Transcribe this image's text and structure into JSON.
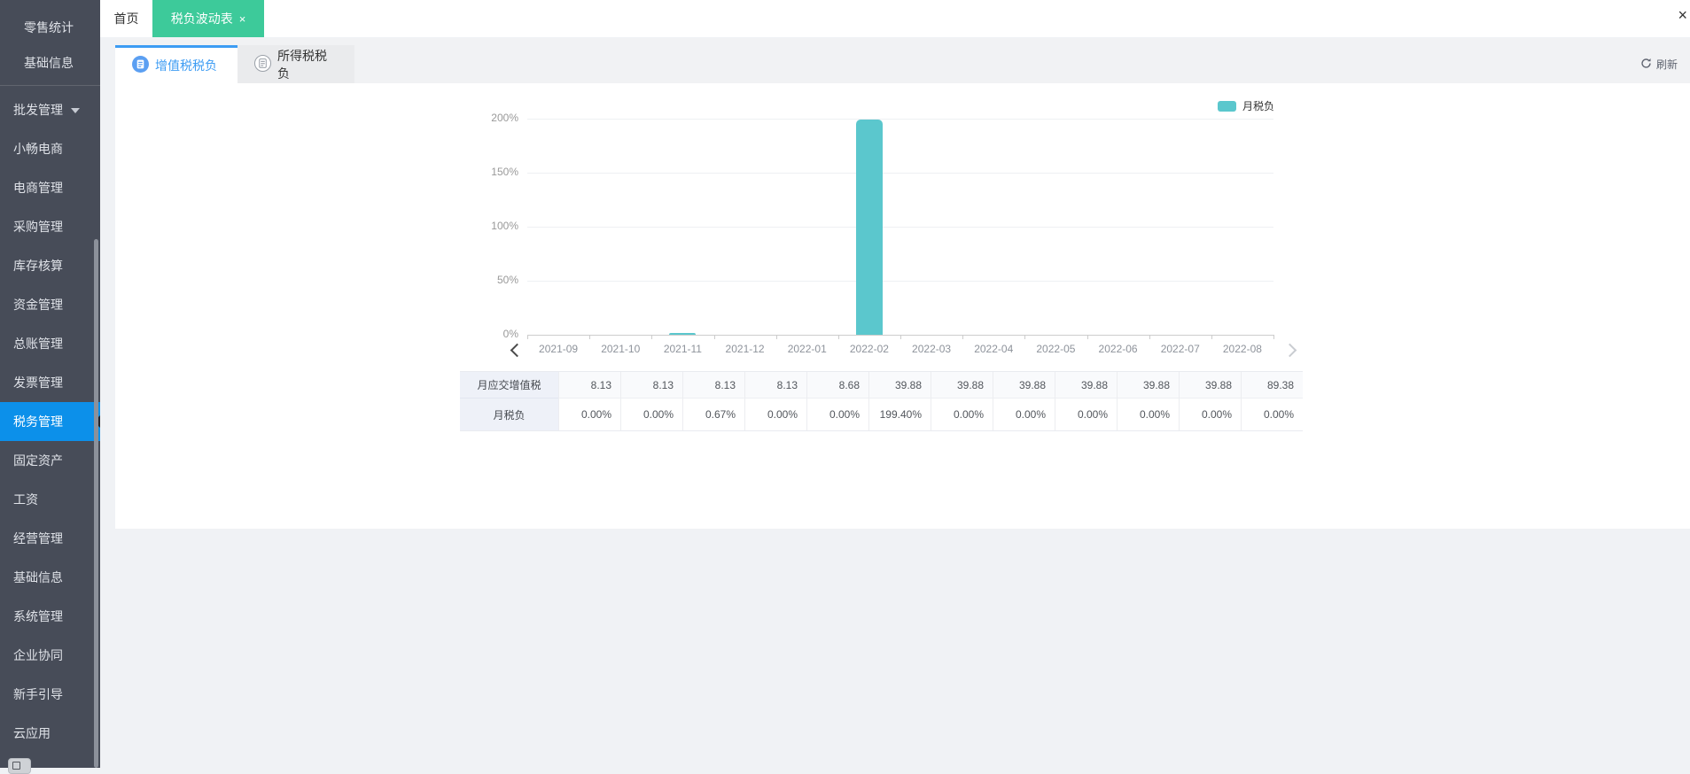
{
  "window": {
    "close_icon": "×"
  },
  "topbar": {
    "tabs": [
      {
        "label": "首页",
        "active": false
      },
      {
        "label": "税负波动表",
        "active": true,
        "close_icon": "×"
      }
    ]
  },
  "sidebar": {
    "top_items": [
      {
        "label": "零售统计"
      },
      {
        "label": "基础信息"
      }
    ],
    "items": [
      {
        "label": "批发管理",
        "has_dropdown": true
      },
      {
        "label": "小畅电商"
      },
      {
        "label": "电商管理"
      },
      {
        "label": "采购管理"
      },
      {
        "label": "库存核算"
      },
      {
        "label": "资金管理"
      },
      {
        "label": "总账管理"
      },
      {
        "label": "发票管理"
      },
      {
        "label": "税务管理",
        "active": true
      },
      {
        "label": "固定资产"
      },
      {
        "label": "工资"
      },
      {
        "label": "经营管理"
      },
      {
        "label": "基础信息"
      },
      {
        "label": "系统管理"
      },
      {
        "label": "企业协同"
      },
      {
        "label": "新手引导"
      },
      {
        "label": "云应用"
      }
    ]
  },
  "subtabs": {
    "tabs": [
      {
        "label": "增值税税负",
        "active": true,
        "icon": "vat-invoice-icon"
      },
      {
        "label": "所得税税负",
        "active": false,
        "icon": "income-tax-invoice-icon"
      }
    ],
    "refresh_label": "刷新",
    "refresh_icon": "refresh-icon"
  },
  "chart_data": {
    "type": "bar",
    "title": "",
    "xlabel": "",
    "ylabel": "",
    "categories": [
      "2021-09",
      "2021-10",
      "2021-11",
      "2021-12",
      "2022-01",
      "2022-02",
      "2022-03",
      "2022-04",
      "2022-05",
      "2022-06",
      "2022-07",
      "2022-08"
    ],
    "series": [
      {
        "name": "月税负",
        "color": "#5bc7cd",
        "values": [
          0,
          0,
          0.67,
          0,
          0,
          199.4,
          0,
          0,
          0,
          0,
          0,
          0
        ]
      }
    ],
    "ylim": [
      0,
      200
    ],
    "yticks": [
      {
        "value": 0,
        "label": "0%"
      },
      {
        "value": 50,
        "label": "50%"
      },
      {
        "value": 100,
        "label": "100%"
      },
      {
        "value": 150,
        "label": "150%"
      },
      {
        "value": 200,
        "label": "200%"
      }
    ],
    "grid": true,
    "legend": {
      "position": "top-right",
      "items": [
        {
          "label": "月税负",
          "color": "#5bc7cd"
        }
      ]
    },
    "nav": {
      "prev_icon": "chevron-left-icon",
      "next_icon": "chevron-right-icon"
    }
  },
  "table": {
    "rows": [
      {
        "label": "月应交增值税",
        "values": [
          "8.13",
          "8.13",
          "8.13",
          "8.13",
          "8.68",
          "39.88",
          "39.88",
          "39.88",
          "39.88",
          "39.88",
          "39.88",
          "89.38"
        ]
      },
      {
        "label": "月税负",
        "values": [
          "0.00%",
          "0.00%",
          "0.67%",
          "0.00%",
          "0.00%",
          "199.40%",
          "0.00%",
          "0.00%",
          "0.00%",
          "0.00%",
          "0.00%",
          "0.00%"
        ]
      }
    ]
  },
  "colors": {
    "accent_blue": "#0c90ea",
    "subtab_blue": "#3d9cf3",
    "tab_green": "#3dca9a",
    "bar_teal": "#5bc7cd",
    "sidebar_bg": "#474c58",
    "page_bg": "#f0f2f5",
    "panel_bg": "#ffffff"
  }
}
